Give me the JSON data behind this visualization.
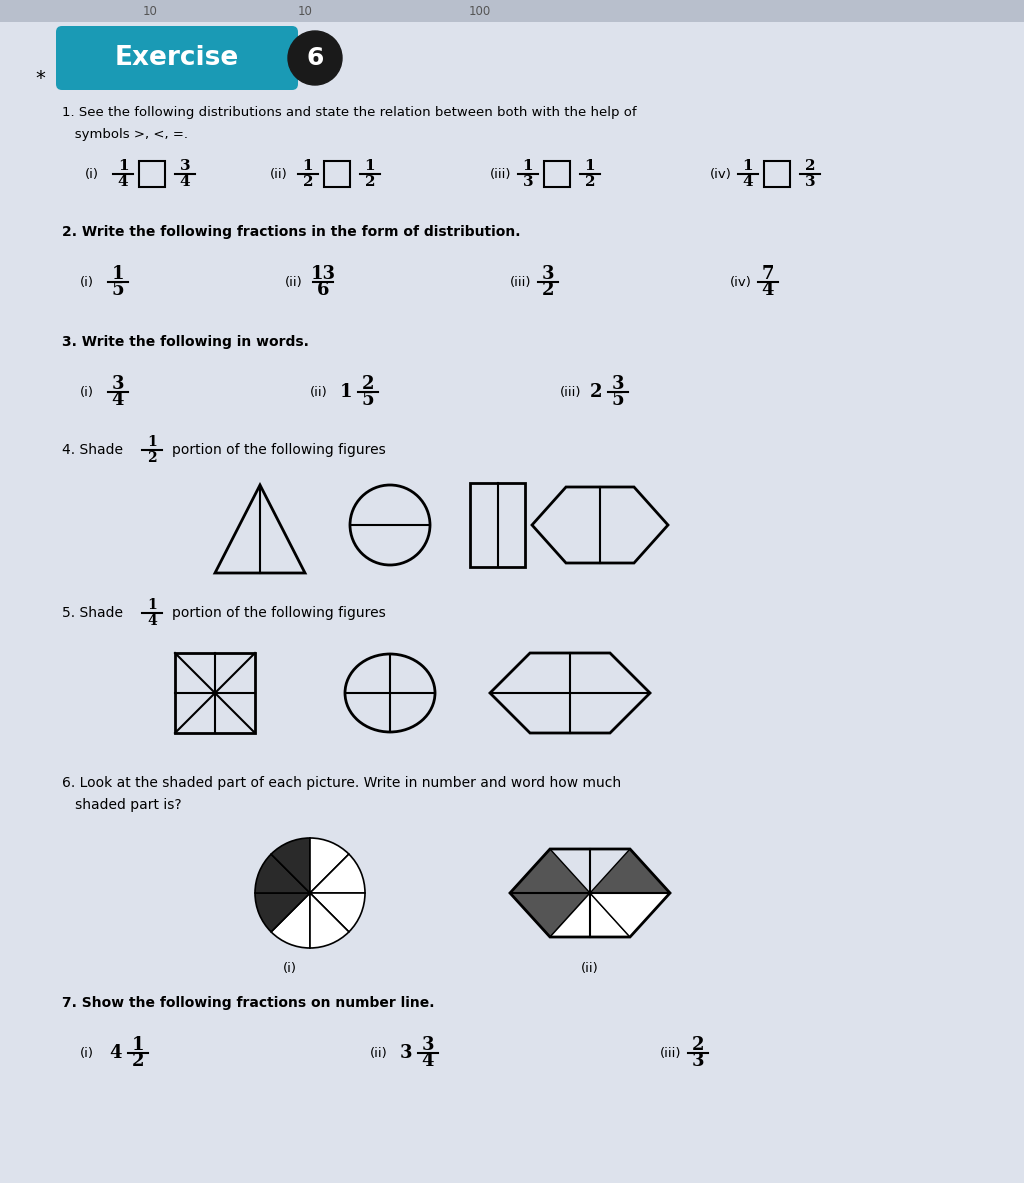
{
  "bg_color": "#c8cdd8",
  "page_color": "#dde2ec",
  "title_box_color": "#1a9ab5",
  "title_text": "Exercise",
  "title_num": "6",
  "s1_text1": "1. See the following distributions and state the relation between both with the help of",
  "s1_text2": "   symbols >, <, =.",
  "s1_items": [
    {
      "label": "(i)",
      "f1n": "1",
      "f1d": "4",
      "f2n": "3",
      "f2d": "4"
    },
    {
      "label": "(ii)",
      "f1n": "1",
      "f1d": "2",
      "f2n": "1",
      "f2d": "2"
    },
    {
      "label": "(iii)",
      "f1n": "1",
      "f1d": "3",
      "f2n": "1",
      "f2d": "2"
    },
    {
      "label": "(iv)",
      "f1n": "1",
      "f1d": "4",
      "f2n": "2",
      "f2d": "3"
    }
  ],
  "s2_text": "2. Write the following fractions in the form of distribution.",
  "s2_items": [
    {
      "label": "(i)",
      "fn": "1",
      "fd": "5"
    },
    {
      "label": "(ii)",
      "fn": "13",
      "fd": "6"
    },
    {
      "label": "(iii)",
      "fn": "3",
      "fd": "2"
    },
    {
      "label": "(iv)",
      "fn": "7",
      "fd": "4"
    }
  ],
  "s3_text": "3. Write the following in words.",
  "s3_items": [
    {
      "label": "(i)",
      "fn": "3",
      "fd": "4"
    },
    {
      "label": "(ii)",
      "whole": "1",
      "fn": "2",
      "fd": "5"
    },
    {
      "label": "(iii)",
      "whole": "2",
      "fn": "3",
      "fd": "5"
    }
  ],
  "s4_text": "4. Shade",
  "s4_frac": [
    "1",
    "2"
  ],
  "s4_text2": "portion of the following figures",
  "s5_text": "5. Shade",
  "s5_frac": [
    "1",
    "4"
  ],
  "s5_text2": "portion of the following figures",
  "s6_text1": "6. Look at the shaded part of each picture. Write in number and word how much",
  "s6_text2": "   shaded part is?",
  "s7_text": "7. Show the following fractions on number line.",
  "s7_items": [
    {
      "label": "(i)",
      "whole": "4",
      "fn": "1",
      "fd": "2"
    },
    {
      "label": "(ii)",
      "whole": "3",
      "fn": "3",
      "fd": "4"
    },
    {
      "label": "(iii)",
      "fn": "2",
      "fd": "3"
    }
  ]
}
